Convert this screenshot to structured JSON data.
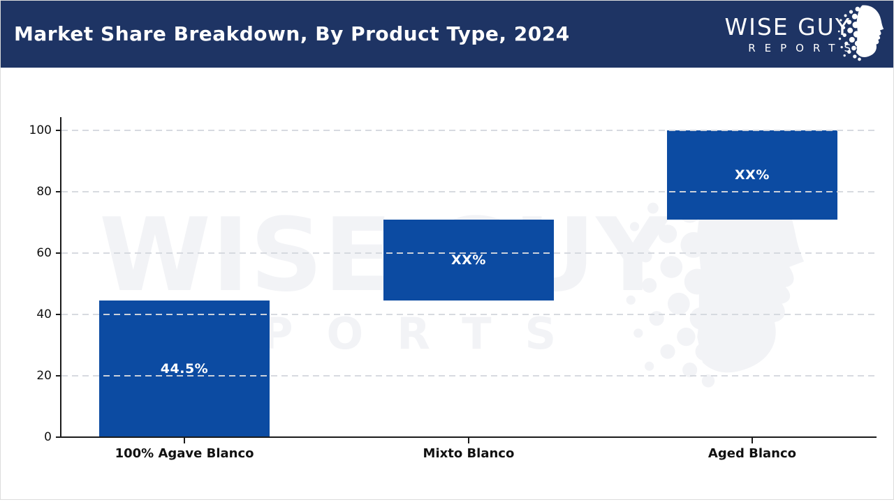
{
  "header": {
    "title": "Market Share Breakdown, By Product Type, 2024",
    "logo": {
      "line1": "WISE GUY",
      "line2": "REPORTS"
    }
  },
  "watermark": {
    "line1": "WISE GUY",
    "line2": "REPORTS"
  },
  "chart_data": {
    "type": "bar",
    "subtype": "floating-segment-bars",
    "title": "Market Share Breakdown, By Product Type, 2024",
    "categories": [
      "100% Agave Blanco",
      "Mixto Blanco",
      "Aged Blanco"
    ],
    "series": [
      {
        "name": "100% Agave Blanco",
        "start": 0,
        "end": 44.5,
        "label": "44.5%"
      },
      {
        "name": "Mixto Blanco",
        "start": 44.5,
        "end": 71,
        "label": "XX%"
      },
      {
        "name": "Aged Blanco",
        "start": 71,
        "end": 100,
        "label": "XX%"
      }
    ],
    "ylim": [
      0,
      100
    ],
    "yticks": [
      0,
      20,
      40,
      60,
      80,
      100
    ],
    "xlabel": "",
    "ylabel": "",
    "grid": "horizontal-dashed",
    "legend": "none"
  },
  "colors": {
    "header_bg": "#1e3464",
    "bar": "#0c4ba2",
    "bar_label": "#ffffff",
    "gridline": "#d5d8de",
    "axis": "#1a1a1a",
    "tick_text": "#111111",
    "watermark": "#f2f3f6"
  }
}
